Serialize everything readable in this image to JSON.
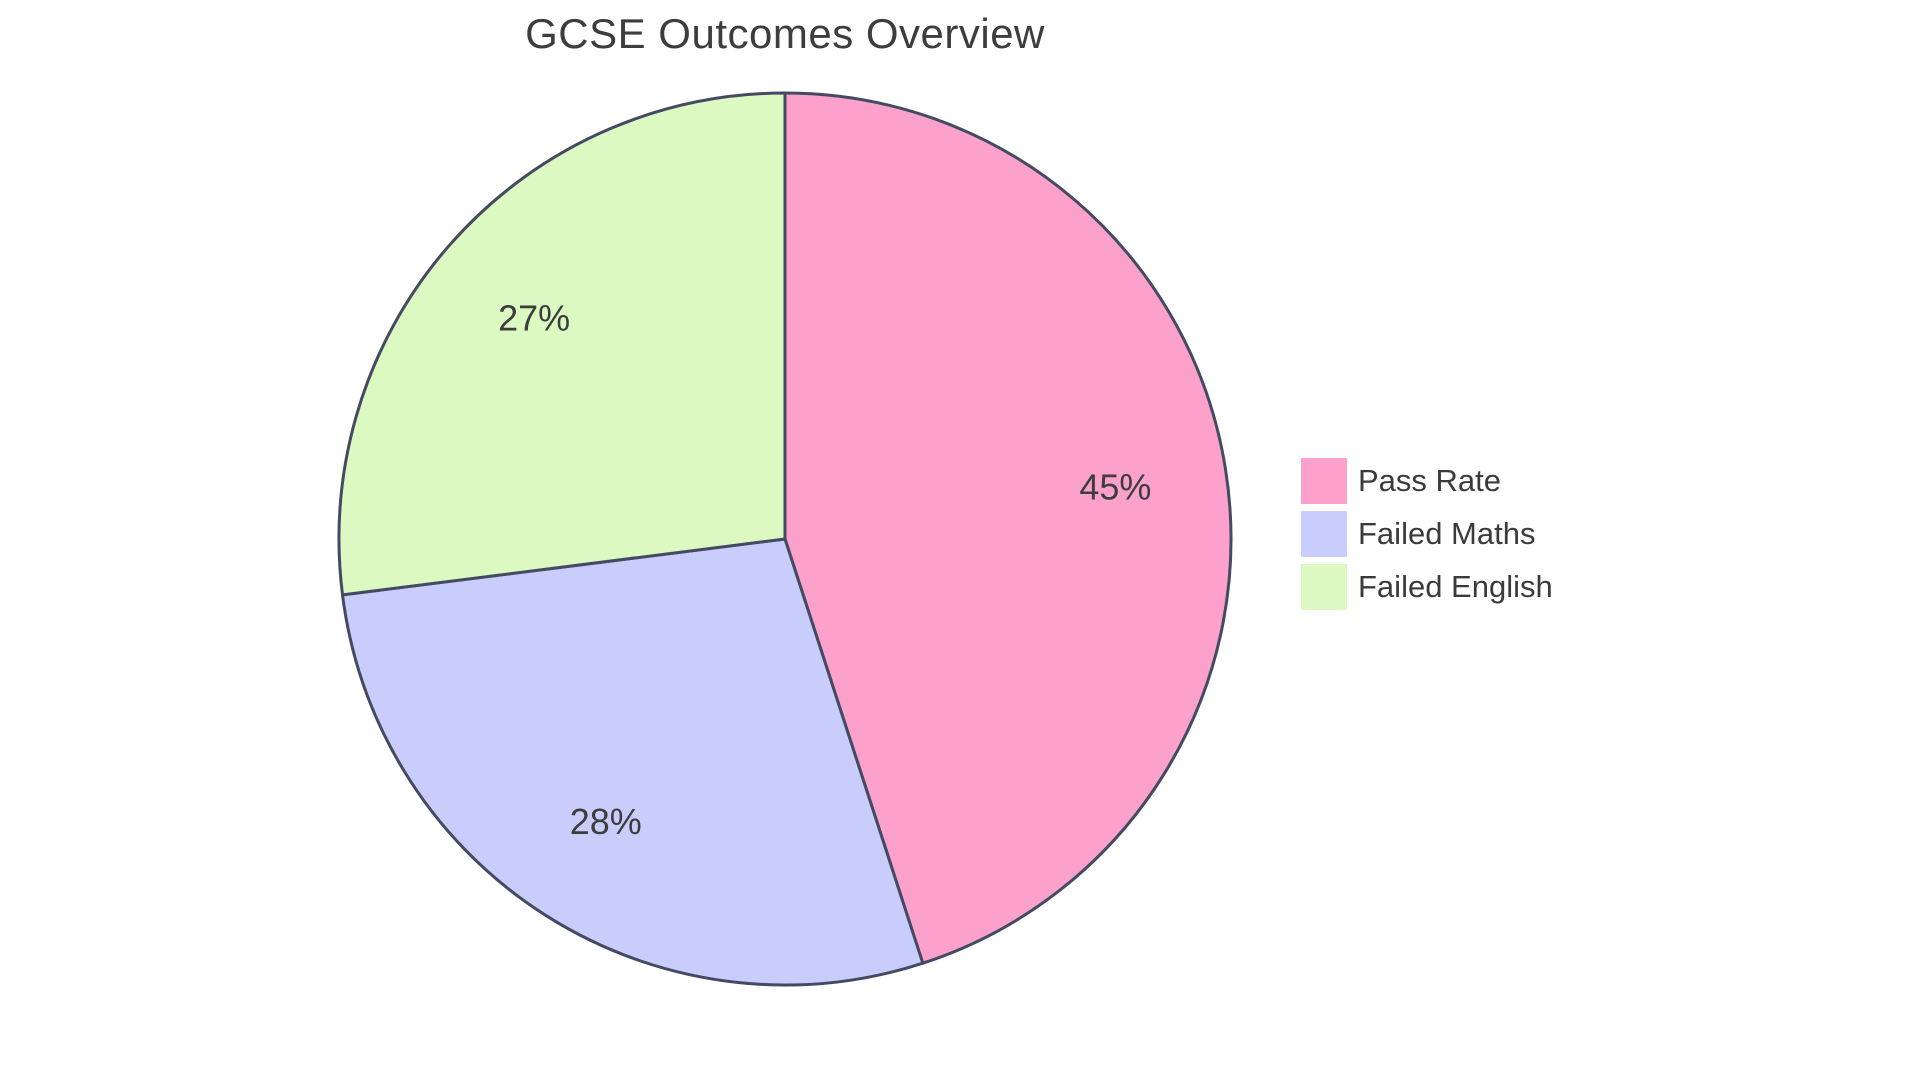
{
  "title": "GCSE Outcomes Overview",
  "chart_data": {
    "type": "pie",
    "title": "GCSE Outcomes Overview",
    "slices": [
      {
        "label": "Pass Rate",
        "value": 45,
        "pct_label": "45%",
        "color": "#FBA1CB"
      },
      {
        "label": "Failed Maths",
        "value": 28,
        "pct_label": "28%",
        "color": "#C9CDFB"
      },
      {
        "label": "Failed English",
        "value": 27,
        "pct_label": "27%",
        "color": "#DBF9C1"
      }
    ],
    "start_angle": "top",
    "direction": "clockwise",
    "stroke_color": "#454A63",
    "stroke_width": 3,
    "label_color": "#3D3D3D",
    "label_radius_ratio": 0.75,
    "legend_position": "right",
    "background_color": "#FFFFFF"
  }
}
